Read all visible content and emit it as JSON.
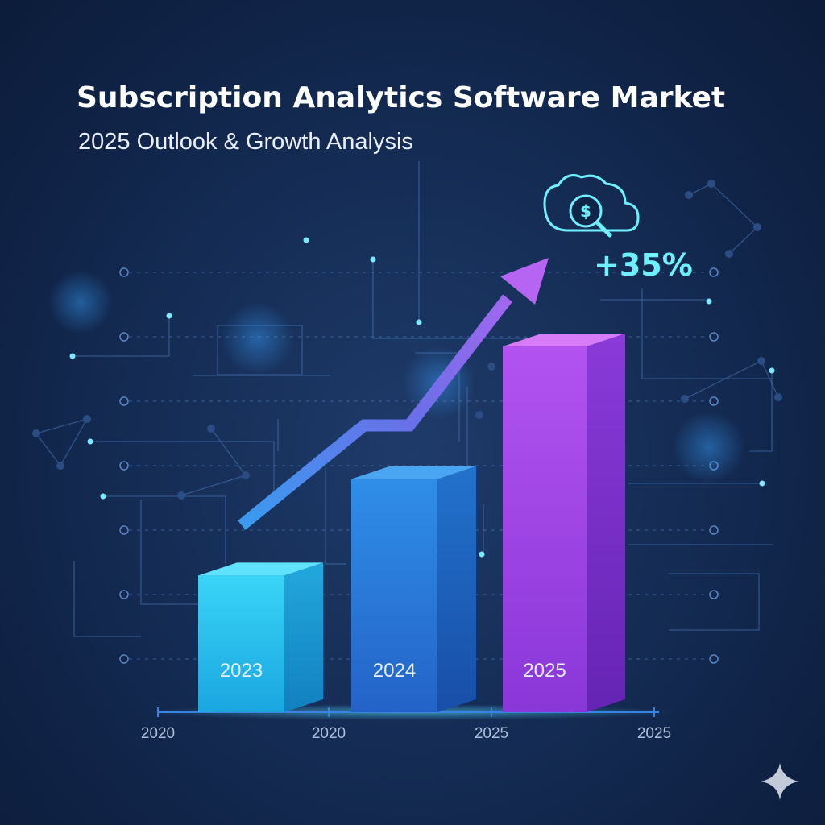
{
  "chart_data": {
    "type": "bar",
    "title": "Subscription Analytics Software Market",
    "subtitle": "2025 Outlook & Growth Analysis",
    "categories": [
      "2023",
      "2024",
      "2025"
    ],
    "values": [
      170,
      290,
      455
    ],
    "ylim": [
      0,
      500
    ],
    "x_ticks": [
      "2020",
      "2020",
      "2025",
      "2025"
    ],
    "growth_label": "+35%",
    "grid": false,
    "legend": "none"
  },
  "colors": {
    "bar_2023": "#2ec9f2",
    "bar_2024": "#2f7fe0",
    "bar_2025": "#a24ae8",
    "arrow_start": "#3a9bf0",
    "arrow_end": "#b565f2",
    "accent": "#6ef0ff",
    "background": "#142a52"
  },
  "icons": {
    "growth_icon": "cloud-dollar-search-icon",
    "corner_icon": "sparkle-icon"
  }
}
